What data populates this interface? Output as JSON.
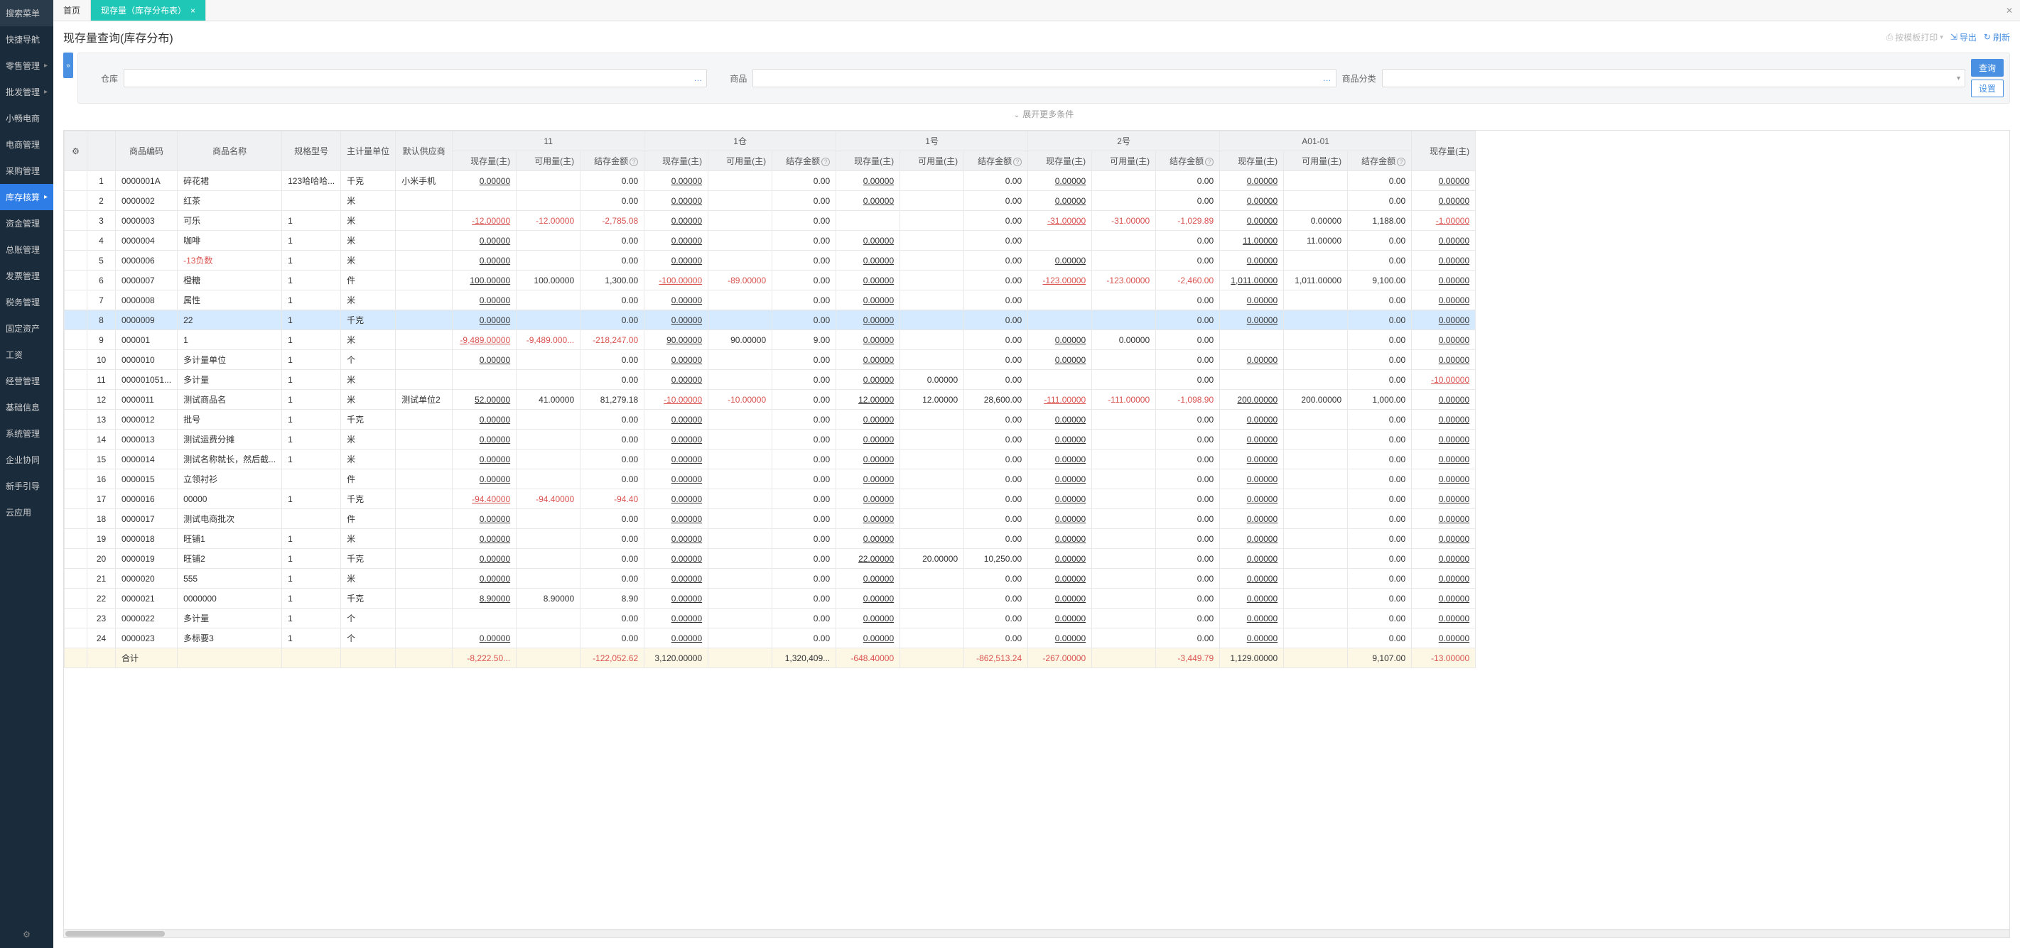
{
  "sidebar": {
    "items": [
      {
        "label": "搜索菜单",
        "chev": false
      },
      {
        "label": "快捷导航",
        "chev": false
      },
      {
        "label": "零售管理",
        "chev": true
      },
      {
        "label": "批发管理",
        "chev": true
      },
      {
        "label": "小畅电商",
        "chev": false
      },
      {
        "label": "电商管理",
        "chev": false
      },
      {
        "label": "采购管理",
        "chev": false
      },
      {
        "label": "库存核算",
        "chev": true,
        "active": true
      },
      {
        "label": "资金管理",
        "chev": false
      },
      {
        "label": "总账管理",
        "chev": false
      },
      {
        "label": "发票管理",
        "chev": false
      },
      {
        "label": "税务管理",
        "chev": false
      },
      {
        "label": "固定资产",
        "chev": false
      },
      {
        "label": "工资",
        "chev": false
      },
      {
        "label": "经营管理",
        "chev": false
      },
      {
        "label": "基础信息",
        "chev": false
      },
      {
        "label": "系统管理",
        "chev": false
      },
      {
        "label": "企业协同",
        "chev": false
      },
      {
        "label": "新手引导",
        "chev": false
      },
      {
        "label": "云应用",
        "chev": false
      }
    ]
  },
  "tabs": [
    {
      "label": "首页",
      "closable": false
    },
    {
      "label": "现存量（库存分布表）",
      "closable": true,
      "active": true
    }
  ],
  "page": {
    "title": "现存量查询(库存分布)",
    "actions": {
      "print": "按模板打印",
      "export": "导出",
      "refresh": "刷新"
    }
  },
  "filters": {
    "warehouse_label": "仓库",
    "product_label": "商品",
    "category_label": "商品分类",
    "query_btn": "查询",
    "settings_btn": "设置",
    "expand_label": "展开更多条件"
  },
  "table": {
    "warehouses": [
      "11",
      "1仓",
      "1号",
      "2号",
      "A01-01"
    ],
    "sub_headers": {
      "stock": "现存量(主)",
      "avail": "可用量(主)",
      "amount": "结存金额"
    },
    "fixed_headers": {
      "code": "商品编码",
      "name": "商品名称",
      "spec": "规格型号",
      "unit": "主计量单位",
      "supp": "默认供应商"
    },
    "rows": [
      {
        "idx": 1,
        "code": "0000001A",
        "name": "碎花裙",
        "spec": "123哈哈哈...",
        "unit": "千克",
        "supp": "小米手机",
        "w": [
          [
            "0.00000",
            "",
            "0.00"
          ],
          [
            "0.00000",
            "",
            "0.00"
          ],
          [
            "0.00000",
            "",
            "0.00"
          ],
          [
            "0.00000",
            "",
            "0.00"
          ],
          [
            "0.00000",
            "",
            "0.00"
          ]
        ],
        "ext": "0.00000"
      },
      {
        "idx": 2,
        "code": "0000002",
        "name": "红茶",
        "spec": "",
        "unit": "米",
        "supp": "",
        "w": [
          [
            "",
            "",
            "0.00"
          ],
          [
            "0.00000",
            "",
            "0.00"
          ],
          [
            "0.00000",
            "",
            "0.00"
          ],
          [
            "0.00000",
            "",
            "0.00"
          ],
          [
            "0.00000",
            "",
            "0.00"
          ]
        ],
        "ext": "0.00000"
      },
      {
        "idx": 3,
        "code": "0000003",
        "name": "可乐",
        "spec": "1",
        "unit": "米",
        "supp": "",
        "w": [
          [
            "-12.00000",
            "-12.00000",
            "-2,785.08"
          ],
          [
            "0.00000",
            "",
            "0.00"
          ],
          [
            "",
            "",
            "0.00"
          ],
          [
            "-31.00000",
            "-31.00000",
            "-1,029.89"
          ],
          [
            "0.00000",
            "0.00000",
            "1,188.00"
          ]
        ],
        "ext": "-1.00000",
        "neg": [
          true,
          true,
          true,
          false,
          false,
          false,
          false,
          false,
          false,
          true,
          true,
          true,
          false,
          false,
          false,
          true
        ]
      },
      {
        "idx": 4,
        "code": "0000004",
        "name": "咖啡",
        "spec": "1",
        "unit": "米",
        "supp": "",
        "w": [
          [
            "0.00000",
            "",
            "0.00"
          ],
          [
            "0.00000",
            "",
            "0.00"
          ],
          [
            "0.00000",
            "",
            "0.00"
          ],
          [
            "",
            "",
            "0.00"
          ],
          [
            "11.00000",
            "11.00000",
            "0.00"
          ]
        ],
        "ext": "0.00000"
      },
      {
        "idx": 5,
        "code": "0000006",
        "name": "-13负数",
        "nameNeg": true,
        "spec": "1",
        "unit": "米",
        "supp": "",
        "w": [
          [
            "0.00000",
            "",
            "0.00"
          ],
          [
            "0.00000",
            "",
            "0.00"
          ],
          [
            "0.00000",
            "",
            "0.00"
          ],
          [
            "0.00000",
            "",
            "0.00"
          ],
          [
            "0.00000",
            "",
            "0.00"
          ]
        ],
        "ext": "0.00000"
      },
      {
        "idx": 6,
        "code": "0000007",
        "name": "橙糖",
        "spec": "1",
        "unit": "件",
        "supp": "",
        "w": [
          [
            "100.00000",
            "100.00000",
            "1,300.00"
          ],
          [
            "-100.00000",
            "-89.00000",
            "0.00"
          ],
          [
            "0.00000",
            "",
            "0.00"
          ],
          [
            "-123.00000",
            "-123.00000",
            "-2,460.00"
          ],
          [
            "1,011.00000",
            "1,011.00000",
            "9,100.00"
          ]
        ],
        "ext": "0.00000",
        "neg": [
          false,
          false,
          false,
          true,
          true,
          false,
          false,
          false,
          false,
          true,
          true,
          true,
          false,
          false,
          false,
          false
        ]
      },
      {
        "idx": 7,
        "code": "0000008",
        "name": "属性",
        "spec": "1",
        "unit": "米",
        "supp": "",
        "w": [
          [
            "0.00000",
            "",
            "0.00"
          ],
          [
            "0.00000",
            "",
            "0.00"
          ],
          [
            "0.00000",
            "",
            "0.00"
          ],
          [
            "",
            "",
            "0.00"
          ],
          [
            "0.00000",
            "",
            "0.00"
          ]
        ],
        "ext": "0.00000"
      },
      {
        "idx": 8,
        "code": "0000009",
        "name": "22",
        "spec": "1",
        "unit": "千克",
        "supp": "",
        "hover": true,
        "w": [
          [
            "0.00000",
            "",
            "0.00"
          ],
          [
            "0.00000",
            "",
            "0.00"
          ],
          [
            "0.00000",
            "",
            "0.00"
          ],
          [
            "",
            "",
            "0.00"
          ],
          [
            "0.00000",
            "",
            "0.00"
          ]
        ],
        "ext": "0.00000"
      },
      {
        "idx": 9,
        "code": "000001",
        "name": "1",
        "spec": "1",
        "unit": "米",
        "supp": "",
        "w": [
          [
            "-9,489.00000",
            "-9,489.000...",
            "-218,247.00"
          ],
          [
            "90.00000",
            "90.00000",
            "9.00"
          ],
          [
            "0.00000",
            "",
            "0.00"
          ],
          [
            "0.00000",
            "0.00000",
            "0.00"
          ],
          [
            "",
            "",
            "0.00"
          ]
        ],
        "ext": "0.00000",
        "neg": [
          true,
          true,
          true,
          false,
          false,
          false,
          false,
          false,
          false,
          false,
          false,
          false,
          false,
          false,
          false,
          false
        ]
      },
      {
        "idx": 10,
        "code": "0000010",
        "name": "多计量单位",
        "spec": "1",
        "unit": "个",
        "supp": "",
        "w": [
          [
            "0.00000",
            "",
            "0.00"
          ],
          [
            "0.00000",
            "",
            "0.00"
          ],
          [
            "0.00000",
            "",
            "0.00"
          ],
          [
            "0.00000",
            "",
            "0.00"
          ],
          [
            "0.00000",
            "",
            "0.00"
          ]
        ],
        "ext": "0.00000"
      },
      {
        "idx": 11,
        "code": "000001051...",
        "name": "多计量",
        "spec": "1",
        "unit": "米",
        "supp": "",
        "w": [
          [
            "",
            "",
            "0.00"
          ],
          [
            "0.00000",
            "",
            "0.00"
          ],
          [
            "0.00000",
            "0.00000",
            "0.00"
          ],
          [
            "",
            "",
            "0.00"
          ],
          [
            "",
            "",
            "0.00"
          ]
        ],
        "ext": "-10.00000",
        "extNeg": true
      },
      {
        "idx": 12,
        "code": "0000011",
        "name": "测试商品名",
        "spec": "1",
        "unit": "米",
        "supp": "测试单位2",
        "w": [
          [
            "52.00000",
            "41.00000",
            "81,279.18"
          ],
          [
            "-10.00000",
            "-10.00000",
            "0.00"
          ],
          [
            "12.00000",
            "12.00000",
            "28,600.00"
          ],
          [
            "-111.00000",
            "-111.00000",
            "-1,098.90"
          ],
          [
            "200.00000",
            "200.00000",
            "1,000.00"
          ]
        ],
        "ext": "0.00000",
        "neg": [
          false,
          false,
          false,
          true,
          true,
          false,
          false,
          false,
          false,
          true,
          true,
          true,
          false,
          false,
          false,
          false
        ]
      },
      {
        "idx": 13,
        "code": "0000012",
        "name": "批号",
        "spec": "1",
        "unit": "千克",
        "supp": "",
        "w": [
          [
            "0.00000",
            "",
            "0.00"
          ],
          [
            "0.00000",
            "",
            "0.00"
          ],
          [
            "0.00000",
            "",
            "0.00"
          ],
          [
            "0.00000",
            "",
            "0.00"
          ],
          [
            "0.00000",
            "",
            "0.00"
          ]
        ],
        "ext": "0.00000"
      },
      {
        "idx": 14,
        "code": "0000013",
        "name": "测试运费分摊",
        "spec": "1",
        "unit": "米",
        "supp": "",
        "w": [
          [
            "0.00000",
            "",
            "0.00"
          ],
          [
            "0.00000",
            "",
            "0.00"
          ],
          [
            "0.00000",
            "",
            "0.00"
          ],
          [
            "0.00000",
            "",
            "0.00"
          ],
          [
            "0.00000",
            "",
            "0.00"
          ]
        ],
        "ext": "0.00000"
      },
      {
        "idx": 15,
        "code": "0000014",
        "name": "测试名称就长，然后截...",
        "spec": "1",
        "unit": "米",
        "supp": "",
        "w": [
          [
            "0.00000",
            "",
            "0.00"
          ],
          [
            "0.00000",
            "",
            "0.00"
          ],
          [
            "0.00000",
            "",
            "0.00"
          ],
          [
            "0.00000",
            "",
            "0.00"
          ],
          [
            "0.00000",
            "",
            "0.00"
          ]
        ],
        "ext": "0.00000"
      },
      {
        "idx": 16,
        "code": "0000015",
        "name": "立领衬衫",
        "spec": "",
        "unit": "件",
        "supp": "",
        "w": [
          [
            "0.00000",
            "",
            "0.00"
          ],
          [
            "0.00000",
            "",
            "0.00"
          ],
          [
            "0.00000",
            "",
            "0.00"
          ],
          [
            "0.00000",
            "",
            "0.00"
          ],
          [
            "0.00000",
            "",
            "0.00"
          ]
        ],
        "ext": "0.00000"
      },
      {
        "idx": 17,
        "code": "0000016",
        "name": "00000",
        "spec": "1",
        "unit": "千克",
        "supp": "",
        "w": [
          [
            "-94.40000",
            "-94.40000",
            "-94.40"
          ],
          [
            "0.00000",
            "",
            "0.00"
          ],
          [
            "0.00000",
            "",
            "0.00"
          ],
          [
            "0.00000",
            "",
            "0.00"
          ],
          [
            "0.00000",
            "",
            "0.00"
          ]
        ],
        "ext": "0.00000",
        "neg": [
          true,
          true,
          true,
          false,
          false,
          false,
          false,
          false,
          false,
          false,
          false,
          false,
          false,
          false,
          false,
          false
        ]
      },
      {
        "idx": 18,
        "code": "0000017",
        "name": "测试电商批次",
        "spec": "",
        "unit": "件",
        "supp": "",
        "w": [
          [
            "0.00000",
            "",
            "0.00"
          ],
          [
            "0.00000",
            "",
            "0.00"
          ],
          [
            "0.00000",
            "",
            "0.00"
          ],
          [
            "0.00000",
            "",
            "0.00"
          ],
          [
            "0.00000",
            "",
            "0.00"
          ]
        ],
        "ext": "0.00000"
      },
      {
        "idx": 19,
        "code": "0000018",
        "name": "旺铺1",
        "spec": "1",
        "unit": "米",
        "supp": "",
        "w": [
          [
            "0.00000",
            "",
            "0.00"
          ],
          [
            "0.00000",
            "",
            "0.00"
          ],
          [
            "0.00000",
            "",
            "0.00"
          ],
          [
            "0.00000",
            "",
            "0.00"
          ],
          [
            "0.00000",
            "",
            "0.00"
          ]
        ],
        "ext": "0.00000"
      },
      {
        "idx": 20,
        "code": "0000019",
        "name": "旺铺2",
        "spec": "1",
        "unit": "千克",
        "supp": "",
        "w": [
          [
            "0.00000",
            "",
            "0.00"
          ],
          [
            "0.00000",
            "",
            "0.00"
          ],
          [
            "22.00000",
            "20.00000",
            "10,250.00"
          ],
          [
            "0.00000",
            "",
            "0.00"
          ],
          [
            "0.00000",
            "",
            "0.00"
          ]
        ],
        "ext": "0.00000"
      },
      {
        "idx": 21,
        "code": "0000020",
        "name": "555",
        "spec": "1",
        "unit": "米",
        "supp": "",
        "w": [
          [
            "0.00000",
            "",
            "0.00"
          ],
          [
            "0.00000",
            "",
            "0.00"
          ],
          [
            "0.00000",
            "",
            "0.00"
          ],
          [
            "0.00000",
            "",
            "0.00"
          ],
          [
            "0.00000",
            "",
            "0.00"
          ]
        ],
        "ext": "0.00000"
      },
      {
        "idx": 22,
        "code": "0000021",
        "name": "0000000",
        "spec": "1",
        "unit": "千克",
        "supp": "",
        "w": [
          [
            "8.90000",
            "8.90000",
            "8.90"
          ],
          [
            "0.00000",
            "",
            "0.00"
          ],
          [
            "0.00000",
            "",
            "0.00"
          ],
          [
            "0.00000",
            "",
            "0.00"
          ],
          [
            "0.00000",
            "",
            "0.00"
          ]
        ],
        "ext": "0.00000"
      },
      {
        "idx": 23,
        "code": "0000022",
        "name": "多计量",
        "spec": "1",
        "unit": "个",
        "supp": "",
        "w": [
          [
            "",
            "",
            "0.00"
          ],
          [
            "0.00000",
            "",
            "0.00"
          ],
          [
            "0.00000",
            "",
            "0.00"
          ],
          [
            "0.00000",
            "",
            "0.00"
          ],
          [
            "0.00000",
            "",
            "0.00"
          ]
        ],
        "ext": "0.00000"
      },
      {
        "idx": 24,
        "code": "0000023",
        "name": "多标要3",
        "spec": "1",
        "unit": "个",
        "supp": "",
        "w": [
          [
            "0.00000",
            "",
            "0.00"
          ],
          [
            "0.00000",
            "",
            "0.00"
          ],
          [
            "0.00000",
            "",
            "0.00"
          ],
          [
            "0.00000",
            "",
            "0.00"
          ],
          [
            "0.00000",
            "",
            "0.00"
          ]
        ],
        "ext": "0.00000"
      }
    ],
    "total": {
      "label": "合计",
      "w": [
        [
          "-8,222.50...",
          "",
          "-122,052.62"
        ],
        [
          "3,120.00000",
          "",
          "1,320,409..."
        ],
        [
          "-648.40000",
          "",
          "-862,513.24"
        ],
        [
          "-267.00000",
          "",
          "-3,449.79"
        ],
        [
          "1,129.00000",
          "",
          "9,107.00"
        ]
      ],
      "ext": "-13.00000",
      "neg": [
        true,
        false,
        true,
        false,
        false,
        false,
        true,
        false,
        true,
        true,
        false,
        true,
        false,
        false,
        false,
        true
      ]
    }
  }
}
